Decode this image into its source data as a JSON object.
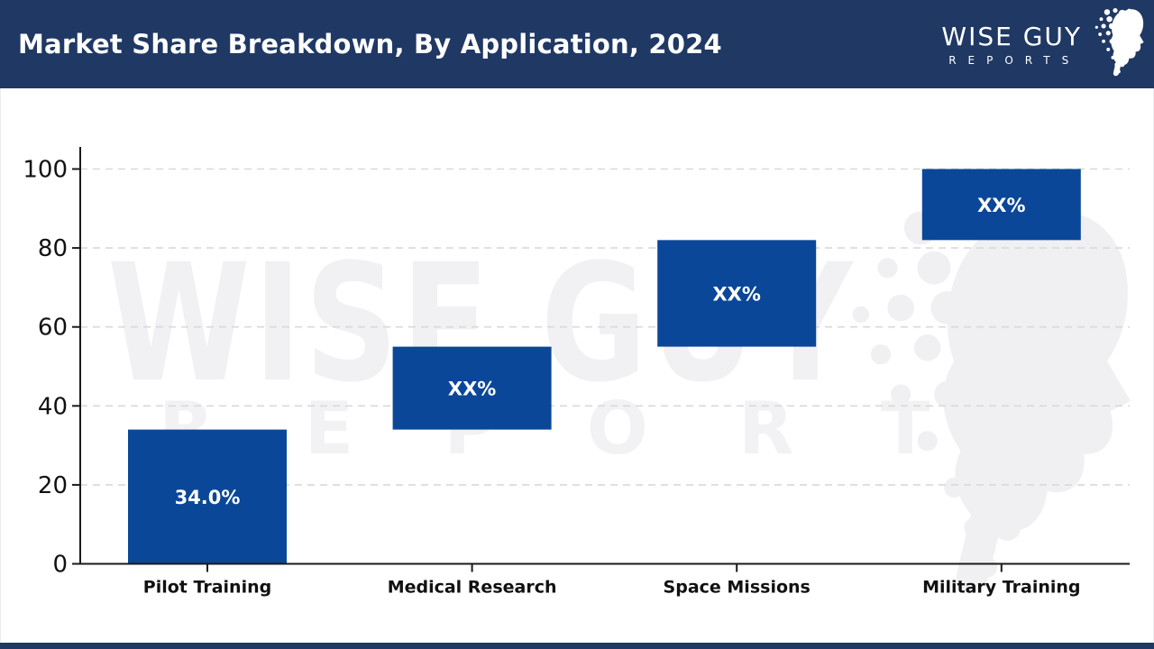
{
  "header": {
    "title": "Market Share Breakdown, By Application, 2024",
    "background": "#1f3864",
    "text_color": "#ffffff",
    "logo": {
      "wordmark": "WISE GUY",
      "subtext": "REPORTS"
    }
  },
  "watermark": {
    "line1": "WISE GUY",
    "line2": "REPORTS"
  },
  "chart_data": {
    "type": "bar",
    "variant": "waterfall",
    "title": "Market Share Breakdown, By Application, 2024",
    "categories": [
      "Pilot Training",
      "Medical Research",
      "Space Missions",
      "Military Training"
    ],
    "segments": [
      {
        "category": "Pilot Training",
        "start": 0,
        "end": 34,
        "value": 34,
        "label": "34.0%"
      },
      {
        "category": "Medical Research",
        "start": 34,
        "end": 55,
        "value": 21,
        "label": "XX%"
      },
      {
        "category": "Space Missions",
        "start": 55,
        "end": 82,
        "value": 27,
        "label": "XX%"
      },
      {
        "category": "Military Training",
        "start": 82,
        "end": 100,
        "value": 18,
        "label": "XX%"
      }
    ],
    "cumulative": [
      34,
      55,
      82,
      100
    ],
    "yticks": [
      0,
      20,
      40,
      60,
      80,
      100
    ],
    "ylim": [
      0,
      105
    ],
    "xlabel": "",
    "ylabel": "",
    "legend": null,
    "grid": {
      "axis": "y",
      "style": "dashed",
      "color": "#d9d9d9"
    },
    "bar_color": "#0b4798",
    "bar_label_color": "#ffffff",
    "axis_color": "#1a1a1a",
    "tick_label_color": "#111111"
  },
  "footer": {
    "background": "#1f3864"
  }
}
